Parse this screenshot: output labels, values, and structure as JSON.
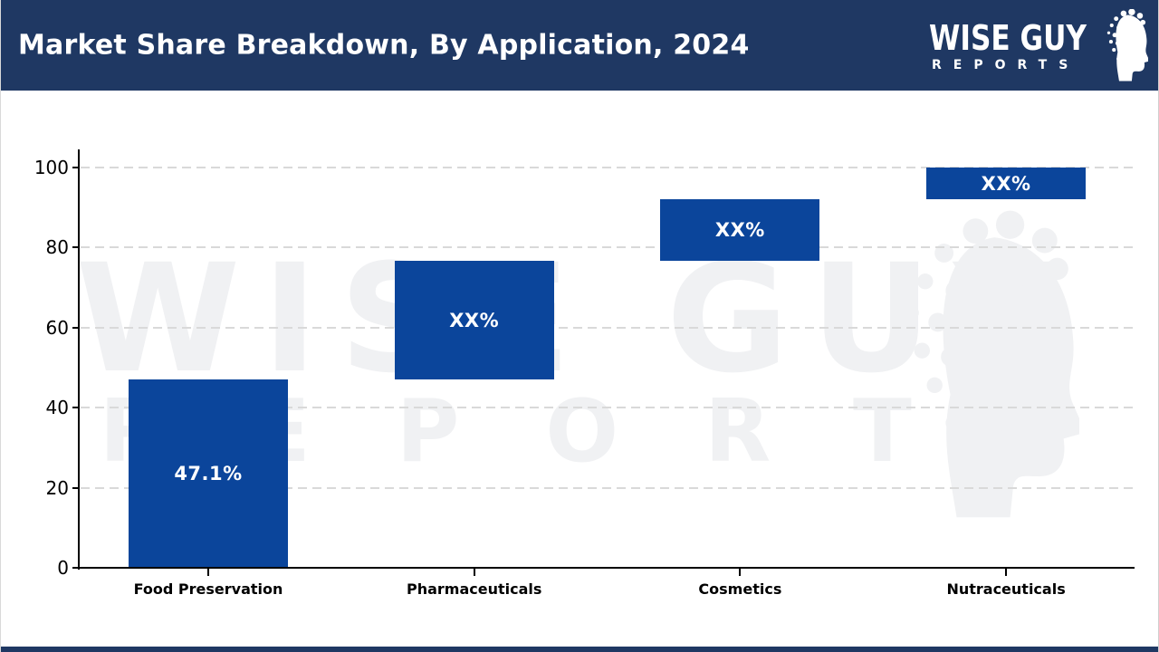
{
  "header": {
    "title": "Market Share Breakdown, By Application, 2024",
    "logo": {
      "line1": "WISE GUY",
      "line2": "REPORTS"
    }
  },
  "watermark": {
    "line1": "WISE GUY",
    "line2": "REPORTS"
  },
  "colors": {
    "header_bg": "#1f3863",
    "bar": "#0b459b",
    "grid": "#d9d9d9",
    "axis": "#000000",
    "bar_label": "#ffffff",
    "watermark": "#f0f1f3"
  },
  "chart_data": {
    "type": "bar",
    "subtype": "waterfall",
    "title": "Market Share Breakdown, By Application, 2024",
    "categories": [
      "Food Preservation",
      "Pharmaceuticals",
      "Cosmetics",
      "Nutraceuticals"
    ],
    "bars": [
      {
        "category": "Food Preservation",
        "start": 0,
        "end": 47.1,
        "label": "47.1%"
      },
      {
        "category": "Pharmaceuticals",
        "start": 47.1,
        "end": 76.6,
        "label": "XX%"
      },
      {
        "category": "Cosmetics",
        "start": 76.6,
        "end": 92.0,
        "label": "XX%"
      },
      {
        "category": "Nutraceuticals",
        "start": 92.0,
        "end": 100.0,
        "label": "XX%"
      }
    ],
    "ylim": [
      0,
      100
    ],
    "yticks": [
      0,
      20,
      40,
      60,
      80,
      100
    ],
    "xlabel": "",
    "ylabel": "",
    "grid": "horizontal-dashed",
    "legend": "none",
    "bar_color": "#0b459b",
    "label_color": "#ffffff"
  }
}
